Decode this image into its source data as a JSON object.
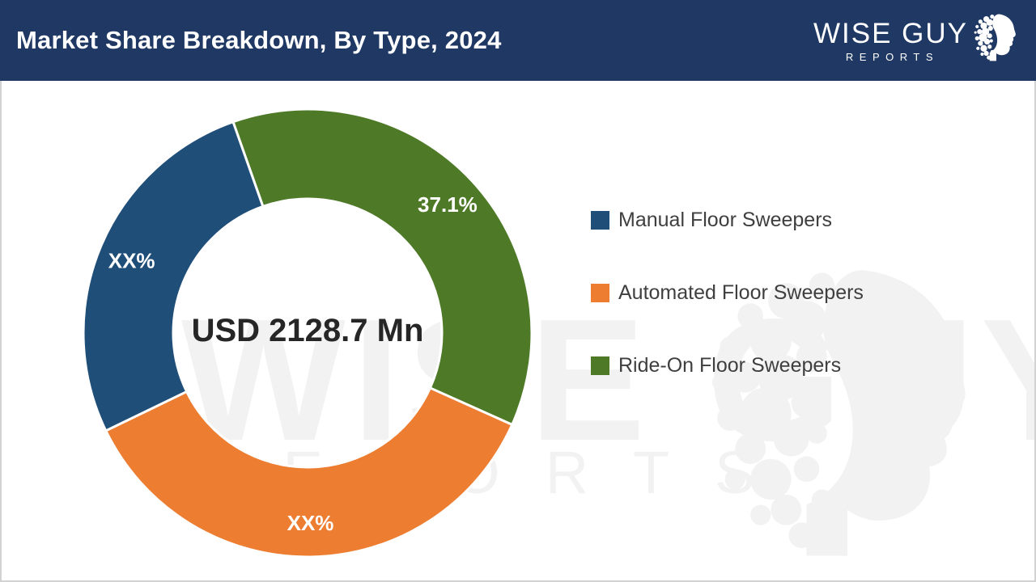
{
  "header": {
    "title": "Market Share Breakdown, By Type, 2024",
    "logo": {
      "name": "WISE GUY",
      "subname": "REPORTS"
    }
  },
  "watermark": {
    "line1": "WISE GUY",
    "line2": "REPORTS"
  },
  "chart_data": {
    "type": "pie",
    "subtype": "donut",
    "title": "Market Share Breakdown, By Type, 2024",
    "center_label": "USD 2128.7 Mn",
    "legend_position": "right",
    "start_angle_deg": -19.4,
    "segments": [
      {
        "label": "Manual Floor Sweepers",
        "value_pct": 26.8,
        "display_pct": "XX%",
        "color": "#1f4e79"
      },
      {
        "label": "Automated Floor Sweepers",
        "value_pct": 36.1,
        "display_pct": "XX%",
        "color": "#ed7d31"
      },
      {
        "label": "Ride-On Floor Sweepers",
        "value_pct": 37.1,
        "display_pct": "37.1%",
        "color": "#4e7a28"
      }
    ]
  }
}
